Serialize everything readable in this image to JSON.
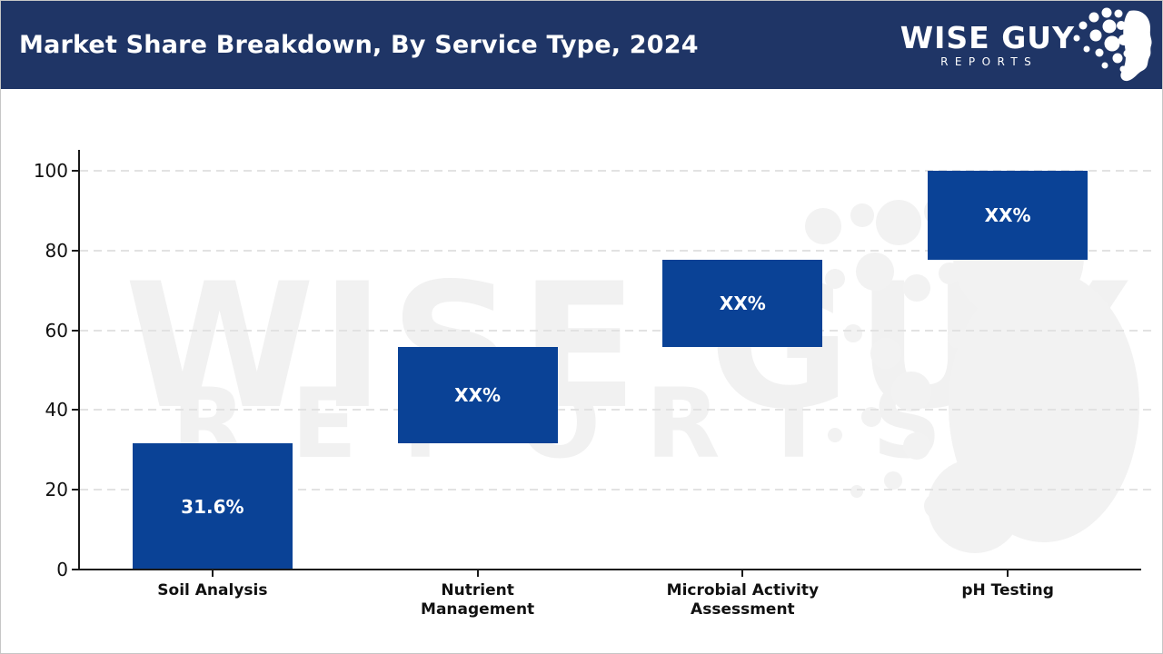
{
  "header": {
    "title": "Market Share Breakdown, By Service Type, 2024",
    "logo": {
      "line1": "WISE GUY",
      "line2": "REPORTS"
    }
  },
  "watermark": {
    "line1": "WISE GUY",
    "line2": "REPORTS"
  },
  "colors": {
    "header_bg": "#1f3566",
    "bar_fill": "#0a4296",
    "bar_label": "#ffffff",
    "gridline": "#e2e2e2",
    "axis": "#1a1a1a",
    "watermark": "#f1f1f1"
  },
  "chart_data": {
    "type": "bar",
    "subtype": "waterfall-floating-bars",
    "title": "Market Share Breakdown, By Service Type, 2024",
    "categories": [
      "Soil Analysis",
      "Nutrient Management",
      "Microbial Activity Assessment",
      "pH Testing"
    ],
    "category_label_lines": [
      [
        "Soil Analysis"
      ],
      [
        "Nutrient",
        "Management"
      ],
      [
        "Microbial Activity",
        "Assessment"
      ],
      [
        "pH Testing"
      ]
    ],
    "segments": [
      {
        "category": "Soil Analysis",
        "start": 0,
        "end": 31.6,
        "label": "31.6%"
      },
      {
        "category": "Nutrient Management",
        "start": 31.6,
        "end": 55.7,
        "label": "XX%"
      },
      {
        "category": "Microbial Activity Assessment",
        "start": 55.7,
        "end": 77.7,
        "label": "XX%"
      },
      {
        "category": "pH Testing",
        "start": 77.7,
        "end": 100,
        "label": "XX%"
      }
    ],
    "xlabel": "",
    "ylabel": "",
    "ylim": [
      0,
      100
    ],
    "yticks": [
      0,
      20,
      40,
      60,
      80,
      100
    ],
    "grid": "horizontal-dashed",
    "legend": "none"
  }
}
